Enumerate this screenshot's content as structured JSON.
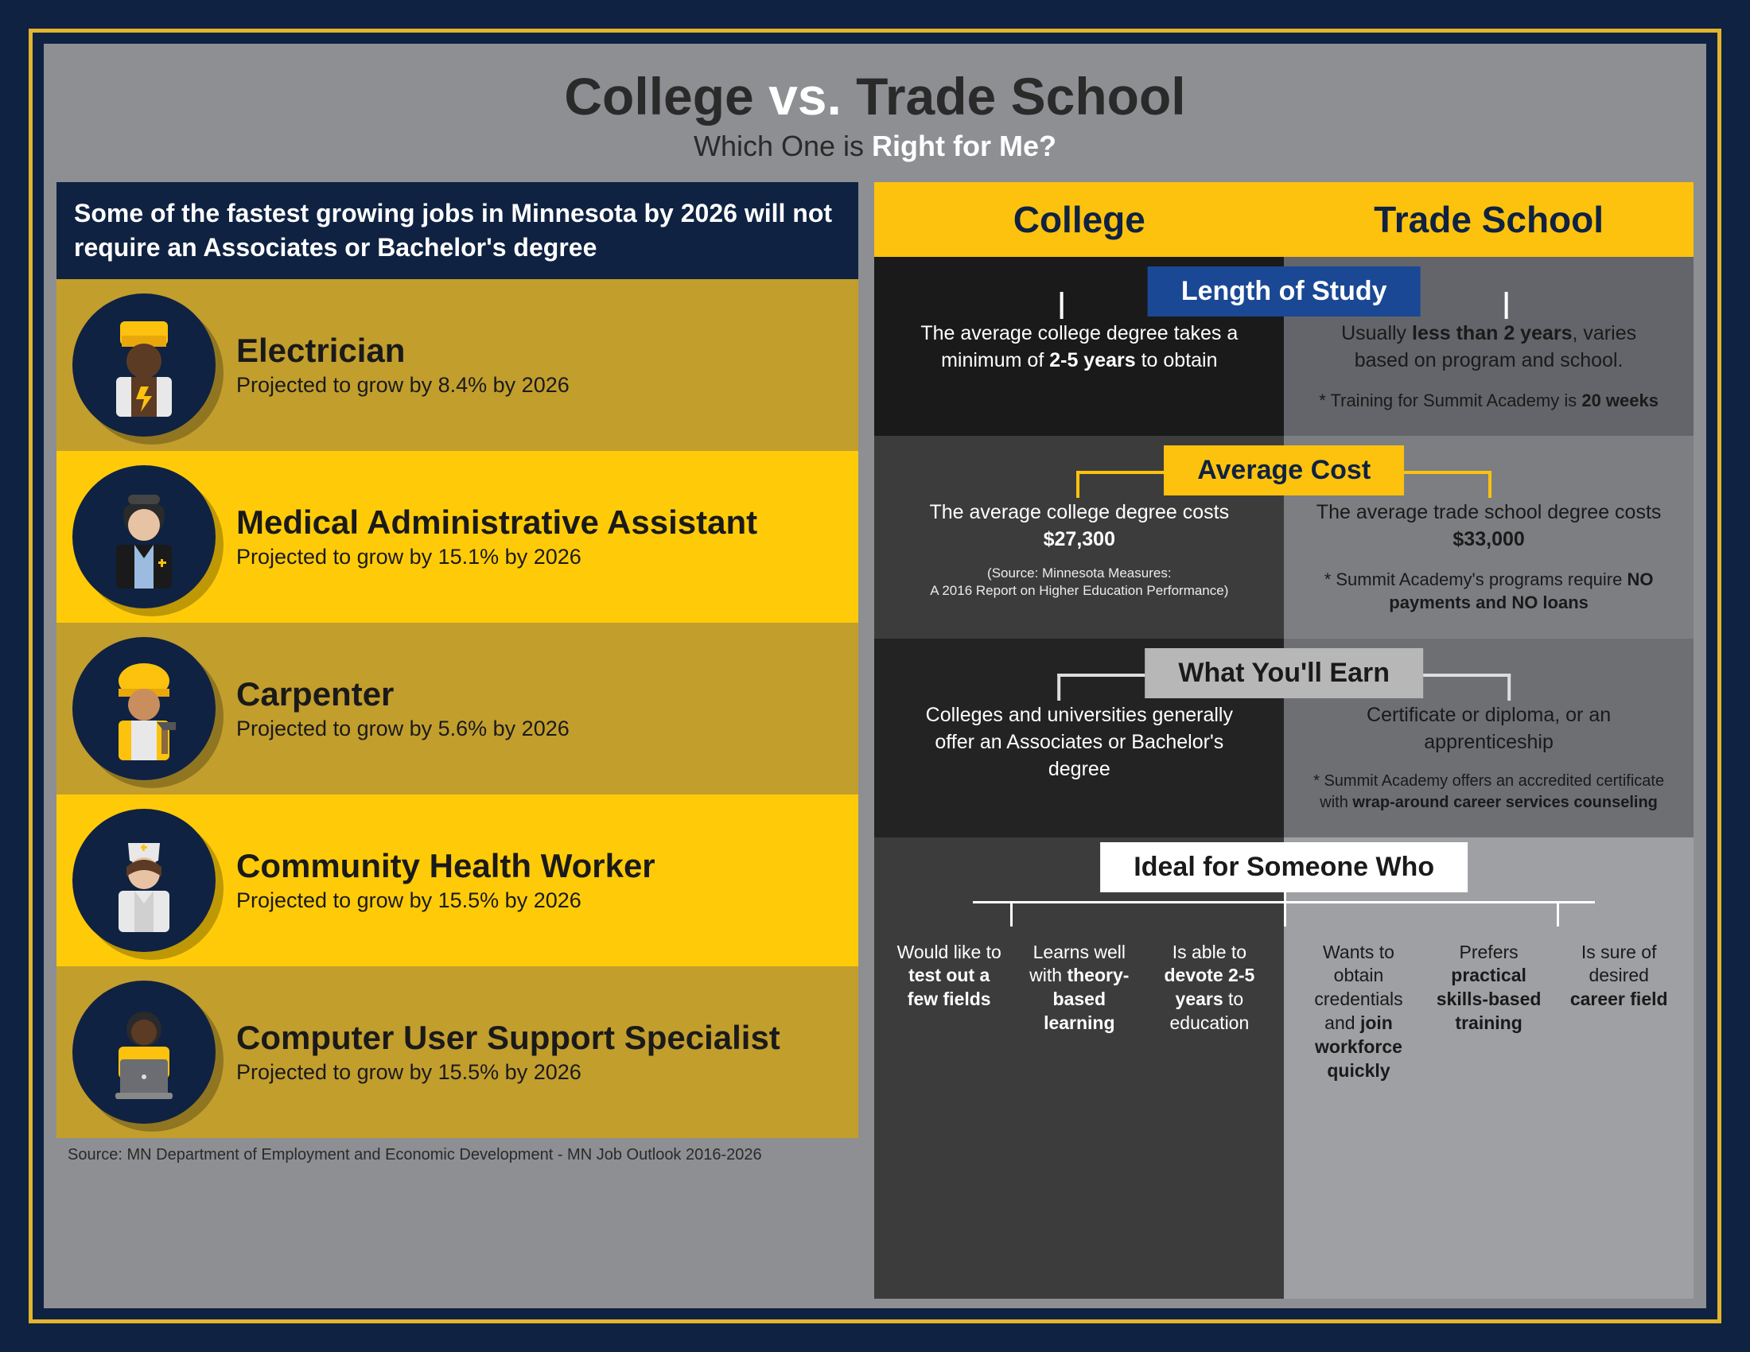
{
  "title": {
    "a": "College ",
    "vs": "vs.",
    "b": " Trade School"
  },
  "subtitle": {
    "a": "Which One is ",
    "b": "Right for Me?"
  },
  "left_header": "Some of the fastest growing jobs in Minnesota by 2026 will not require an Associates or Bachelor's degree",
  "jobs": [
    {
      "title": "Electrician",
      "sub": "Projected to grow by 8.4% by 2026"
    },
    {
      "title": "Medical Administrative Assistant",
      "sub": "Projected to grow by 15.1% by 2026"
    },
    {
      "title": "Carpenter",
      "sub": "Projected to grow by 5.6% by 2026"
    },
    {
      "title": "Community Health Worker",
      "sub": "Projected to grow by 15.5% by 2026"
    },
    {
      "title": "Computer User Support Specialist",
      "sub": "Projected to grow by 15.5% by 2026"
    }
  ],
  "left_source": "Source: MN Department of Employment and Economic Development - MN Job Outlook 2016-2026",
  "right_headers": {
    "col1": "College",
    "col2": "Trade School"
  },
  "rows": {
    "length": {
      "label": "Length of Study",
      "college": "The average college degree takes a minimum of <b>2-5 years</b> to obtain",
      "trade": "Usually <b>less than 2 years</b>, varies based on program and school.",
      "trade_note": "* Training for Summit Academy is <b>20 weeks</b>"
    },
    "cost": {
      "label": "Average Cost",
      "college": "The average college degree costs <b>$27,300</b>",
      "college_fine": "(Source: Minnesota Measures:<br>A 2016 Report on Higher Education Performance)",
      "trade": "The average trade school degree costs <b>$33,000</b>",
      "trade_note": "* Summit Academy's programs require <b>NO payments and NO loans</b>"
    },
    "earn": {
      "label": "What You'll Earn",
      "college": "Colleges and universities generally offer an Associates or Bachelor's degree",
      "trade": "Certificate or diploma, or an apprenticeship",
      "trade_note": "* Summit Academy offers an accredited certificate with <b>wrap-around career services counseling</b>"
    },
    "ideal": {
      "label": "Ideal for Someone Who",
      "college": [
        "Would like to <b>test out a few fields</b>",
        "Learns well with <b>theory-based learning</b>",
        "Is able to <b>devote 2-5 years</b> to education"
      ],
      "trade": [
        "Wants to obtain credentials and <b>join workforce quickly</b>",
        "Prefers <b>practical skills-based training</b>",
        "Is sure of desired <b>career field</b>"
      ]
    }
  },
  "colors": {
    "navy": "#0f2242",
    "yellow": "#fdc20e",
    "dark_yellow": "#c29e2d",
    "bright_yellow": "#ffcb09"
  }
}
